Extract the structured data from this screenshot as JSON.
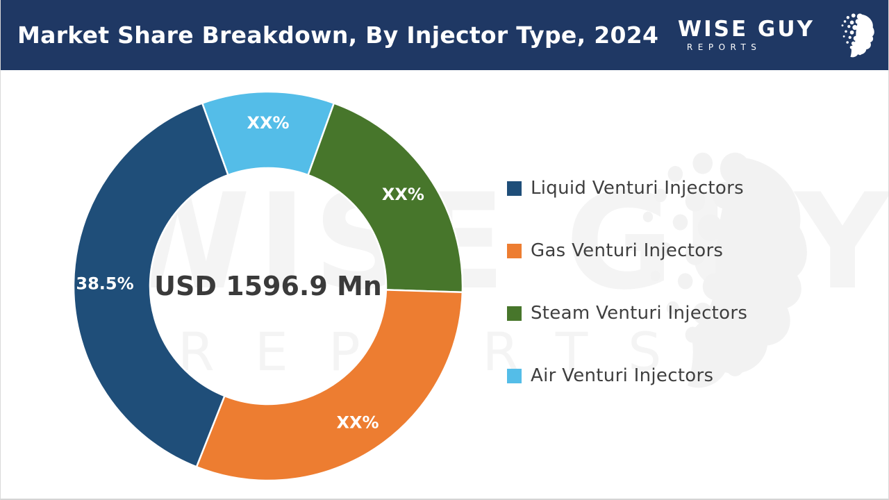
{
  "header": {
    "title": "Market Share Breakdown, By Injector Type, 2024",
    "logo": {
      "name": "WISE GUY",
      "tagline": "REPORTS"
    }
  },
  "watermark": {
    "line1": "WISE GUY",
    "line2": "REPORTS"
  },
  "chart_data": {
    "type": "pie",
    "subtype": "donut",
    "title": "Market Share Breakdown, By Injector Type, 2024",
    "center_label": "USD 1596.9 Mn",
    "legend_position": "right",
    "series": [
      {
        "name": "Liquid Venturi Injectors",
        "value": 38.5,
        "label": "38.5%",
        "color": "#1f4e79"
      },
      {
        "name": "Gas Venturi Injectors",
        "value": 30.5,
        "label": "XX%",
        "color": "#ed7d31"
      },
      {
        "name": "Steam Venturi Injectors",
        "value": 20.0,
        "label": "XX%",
        "color": "#47762b"
      },
      {
        "name": "Air Venturi Injectors",
        "value": 11.0,
        "label": "XX%",
        "color": "#54bde8"
      }
    ],
    "colors": {
      "header_bg": "#1f3864",
      "center_text": "#3a3a3a",
      "slice_label_text": "#ffffff"
    }
  }
}
